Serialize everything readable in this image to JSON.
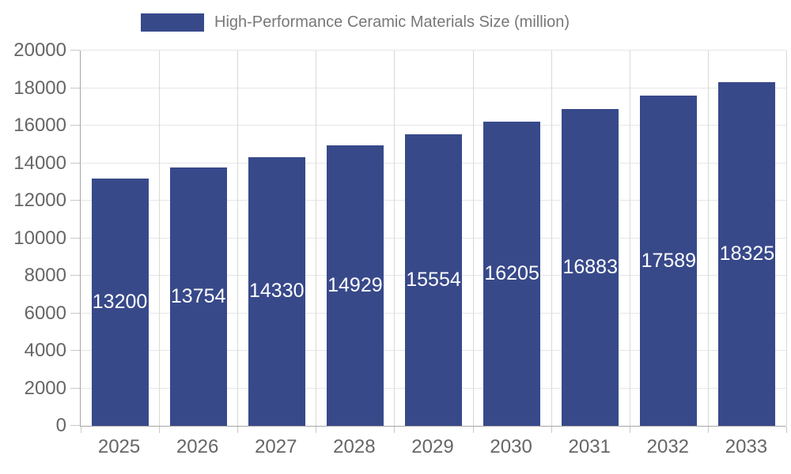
{
  "legend": {
    "label": "High-Performance Ceramic Materials Size (million)"
  },
  "colors": {
    "bar": "#38498A",
    "bar-label": "#ffffff",
    "axis": "#a6a6a6",
    "tick": "#c8c8c8",
    "grid-h": "#e6e6e6",
    "grid-v": "#d9d9d9",
    "tick-label": "#666666",
    "legend-text": "#787878",
    "background": "#ffffff"
  },
  "chart_data": {
    "type": "bar",
    "title": "High-Performance Ceramic Materials Size (million)",
    "categories": [
      "2025",
      "2026",
      "2027",
      "2028",
      "2029",
      "2030",
      "2031",
      "2032",
      "2033"
    ],
    "values": [
      13200,
      13754,
      14330,
      14929,
      15554,
      16205,
      16883,
      17589,
      18325
    ],
    "xlabel": "",
    "ylabel": "",
    "ylim": [
      0,
      20000
    ],
    "y_ticks": [
      0,
      2000,
      4000,
      6000,
      8000,
      10000,
      12000,
      14000,
      16000,
      18000,
      20000
    ],
    "grid": true,
    "legend_position": "top",
    "value_label_position": "inside-center"
  }
}
